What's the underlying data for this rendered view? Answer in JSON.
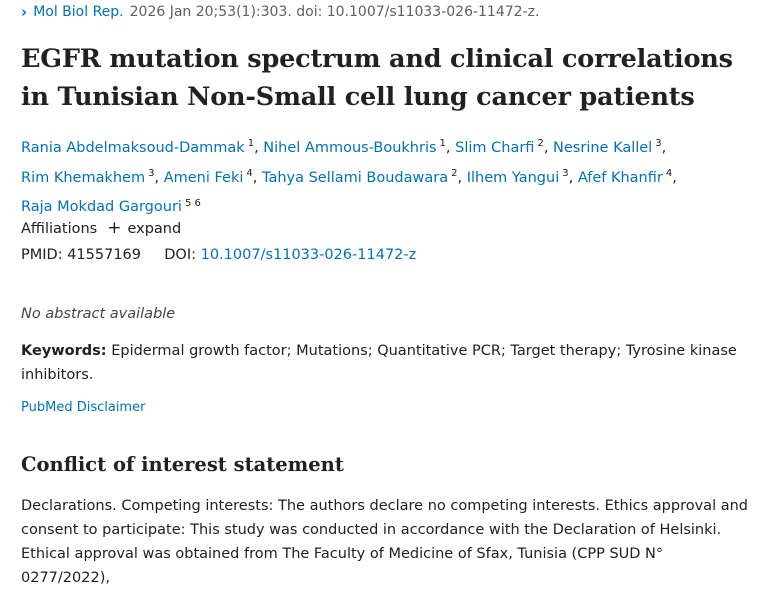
{
  "citation": {
    "chevron": "›",
    "journal": "Mol Biol Rep.",
    "details": "2026 Jan 20;53(1):303. doi: 10.1007/s11033-026-11472-z."
  },
  "title": "EGFR mutation spectrum and clinical correlations in Tunisian Non-Small cell lung cancer patients",
  "authors": [
    {
      "name": "Rania Abdelmaksoud-Dammak",
      "aff": "1",
      "sep": ","
    },
    {
      "name": "Nihel Ammous-Boukhris",
      "aff": "1",
      "sep": ","
    },
    {
      "name": "Slim Charfi",
      "aff": "2",
      "sep": ","
    },
    {
      "name": "Nesrine Kallel",
      "aff": "3",
      "sep": ","
    },
    {
      "name": "Rim Khemakhem",
      "aff": "3",
      "sep": ","
    },
    {
      "name": "Ameni Feki",
      "aff": "4",
      "sep": ","
    },
    {
      "name": "Tahya Sellami Boudawara",
      "aff": "2",
      "sep": ","
    },
    {
      "name": "Ilhem Yangui",
      "aff": "3",
      "sep": ","
    },
    {
      "name": "Afef Khanfir",
      "aff": "4",
      "sep": ","
    },
    {
      "name": "Raja Mokdad Gargouri",
      "aff": "5 6",
      "sep": ""
    }
  ],
  "affiliations": {
    "label": "Affiliations",
    "expand_icon": "+",
    "expand_label": "expand"
  },
  "ids": {
    "pmid_label": "PMID:",
    "pmid": "41557169",
    "doi_label": "DOI:",
    "doi": "10.1007/s11033-026-11472-z"
  },
  "abstract_note": "No abstract available",
  "keywords": {
    "label": "Keywords:",
    "text": "Epidermal growth factor; Mutations; Quantitative PCR; Target therapy; Tyrosine kinase inhibitors."
  },
  "disclaimer": "PubMed Disclaimer",
  "coi": {
    "heading": "Conflict of interest statement",
    "text": "Declarations. Competing interests: The authors declare no competing interests. Ethics approval and consent to participate: This study was conducted in accordance with the Declaration of Helsinki. Ethical approval was obtained from The Faculty of Medicine of Sfax, Tunisia (CPP SUD N° 0277/2022),"
  },
  "colors": {
    "link": "#0071bc",
    "text": "#212121",
    "muted": "#5b616b"
  }
}
